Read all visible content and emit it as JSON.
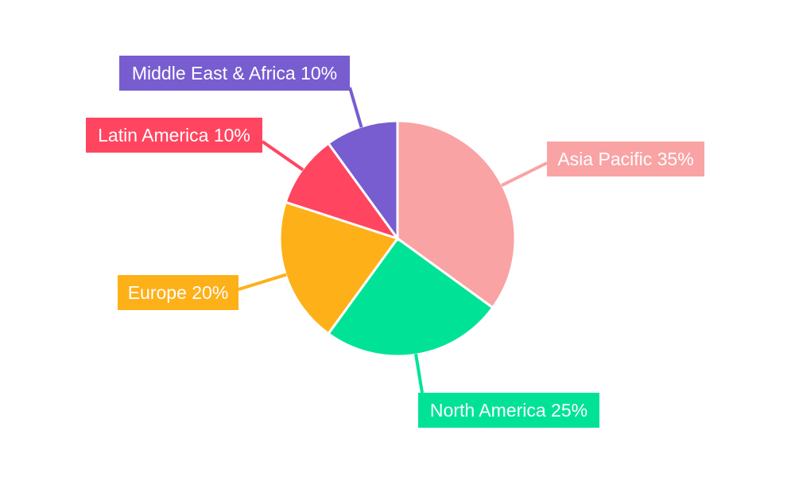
{
  "chart_data": {
    "type": "pie",
    "title": "",
    "start": "top, clockwise",
    "slices": [
      {
        "label": "Asia Pacific",
        "value": 35,
        "text": "Asia Pacific 35%",
        "color": "#f9a3a4"
      },
      {
        "label": "North America",
        "value": 25,
        "text": "North America 25%",
        "color": "#00e396"
      },
      {
        "label": "Europe",
        "value": 20,
        "text": "Europe 20%",
        "color": "#feb019"
      },
      {
        "label": "Latin America",
        "value": 10,
        "text": "Latin America 10%",
        "color": "#ff4560"
      },
      {
        "label": "Middle East & Africa",
        "value": 10,
        "text": "Middle East & Africa 10%",
        "color": "#775dd0"
      }
    ]
  }
}
